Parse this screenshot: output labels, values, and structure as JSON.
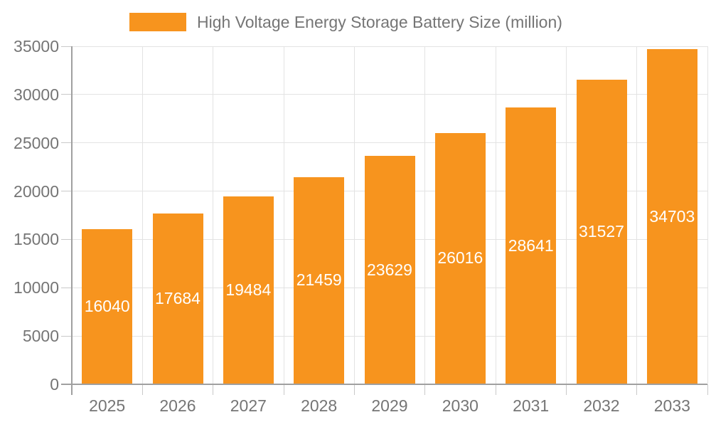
{
  "chart_data": {
    "type": "bar",
    "title": "High Voltage Energy Storage Battery Size (million)",
    "categories": [
      "2025",
      "2026",
      "2027",
      "2028",
      "2029",
      "2030",
      "2031",
      "2032",
      "2033"
    ],
    "values": [
      16040,
      17684,
      19484,
      21459,
      23629,
      26016,
      28641,
      31527,
      34703
    ],
    "series": [
      {
        "name": "High Voltage Energy Storage Battery Size (million)",
        "values": [
          16040,
          17684,
          19484,
          21459,
          23629,
          26016,
          28641,
          31527,
          34703
        ]
      }
    ],
    "xlabel": "",
    "ylabel": "",
    "ylim": [
      0,
      35000
    ],
    "ytick_step": 5000,
    "yticks": [
      "0",
      "5000",
      "10000",
      "15000",
      "20000",
      "25000",
      "30000",
      "35000"
    ],
    "grid": true,
    "legend_position": "top-center",
    "value_label_position": "inside-center",
    "colors": {
      "bar": "#F7941E",
      "axis_line": "#A0A0A0",
      "gridline": "#E3E3E3",
      "tick": "#C9C9C9",
      "axis_text": "#757575",
      "legend_text": "#757575",
      "value_label_text": "#FFFFFF",
      "background": "#FFFFFF"
    }
  }
}
